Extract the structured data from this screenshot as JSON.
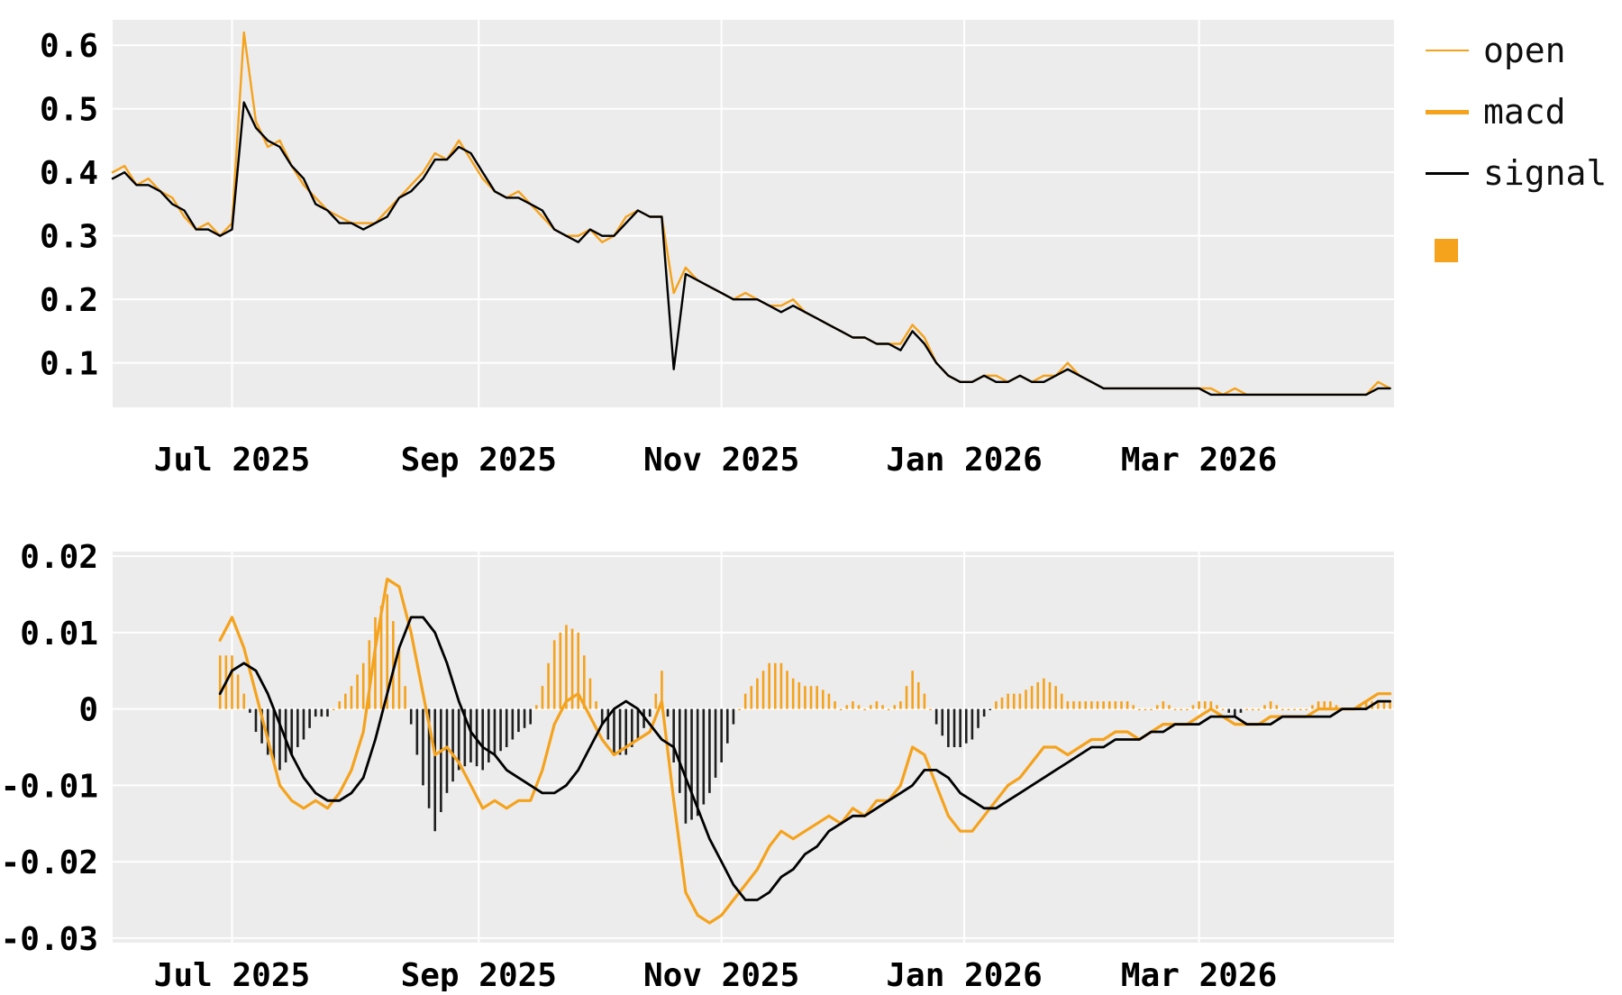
{
  "colors": {
    "orange": "#f5a21c",
    "black": "#000000",
    "plot_bg": "#ececec",
    "grid": "#ffffff",
    "hist_negative": "#1f1f1f"
  },
  "legend": {
    "items": [
      {
        "label": "open",
        "swatch": "thin-orange-line"
      },
      {
        "label": "macd",
        "swatch": "thick-orange-line"
      },
      {
        "label": "signal",
        "swatch": "black-line"
      },
      {
        "label": "",
        "swatch": "orange-square"
      }
    ]
  },
  "chart_data": [
    {
      "type": "line",
      "title": "",
      "panel": "price",
      "x_unit": "days since 2025-06-01",
      "x": {
        "start": 0,
        "step": 3
      },
      "xlim": [
        0,
        322
      ],
      "ylim": [
        0.03,
        0.64
      ],
      "grid": true,
      "yticks": [
        {
          "v": 0.1,
          "label": "0.1"
        },
        {
          "v": 0.2,
          "label": "0.2"
        },
        {
          "v": 0.3,
          "label": "0.3"
        },
        {
          "v": 0.4,
          "label": "0.4"
        },
        {
          "v": 0.5,
          "label": "0.5"
        },
        {
          "v": 0.6,
          "label": "0.6"
        }
      ],
      "xticks": [
        {
          "pos": 30,
          "label": "Jul 2025"
        },
        {
          "pos": 92,
          "label": "Sep 2025"
        },
        {
          "pos": 153,
          "label": "Nov 2025"
        },
        {
          "pos": 214,
          "label": "Jan 2026"
        },
        {
          "pos": 273,
          "label": "Mar 2026"
        }
      ],
      "series": [
        {
          "name": "open",
          "color": "#f5a21c",
          "width": 2.4,
          "values": [
            0.4,
            0.41,
            0.38,
            0.39,
            0.37,
            0.36,
            0.33,
            0.31,
            0.32,
            0.3,
            0.32,
            0.62,
            0.48,
            0.44,
            0.45,
            0.41,
            0.38,
            0.36,
            0.34,
            0.33,
            0.32,
            0.32,
            0.32,
            0.34,
            0.36,
            0.38,
            0.4,
            0.43,
            0.42,
            0.45,
            0.42,
            0.39,
            0.37,
            0.36,
            0.37,
            0.35,
            0.33,
            0.31,
            0.3,
            0.3,
            0.31,
            0.29,
            0.3,
            0.33,
            0.34,
            0.33,
            0.33,
            0.21,
            0.25,
            0.23,
            0.22,
            0.21,
            0.2,
            0.21,
            0.2,
            0.19,
            0.19,
            0.2,
            0.18,
            0.17,
            0.16,
            0.15,
            0.14,
            0.14,
            0.13,
            0.13,
            0.13,
            0.16,
            0.14,
            0.1,
            0.08,
            0.07,
            0.07,
            0.08,
            0.08,
            0.07,
            0.08,
            0.07,
            0.08,
            0.08,
            0.1,
            0.08,
            0.07,
            0.06,
            0.06,
            0.06,
            0.06,
            0.06,
            0.06,
            0.06,
            0.06,
            0.06,
            0.06,
            0.05,
            0.06,
            0.05,
            0.05,
            0.05,
            0.05,
            0.05,
            0.05,
            0.05,
            0.05,
            0.05,
            0.05,
            0.05,
            0.07,
            0.06
          ]
        },
        {
          "name": "signal",
          "color": "#000000",
          "width": 2.4,
          "values": [
            0.39,
            0.4,
            0.38,
            0.38,
            0.37,
            0.35,
            0.34,
            0.31,
            0.31,
            0.3,
            0.31,
            0.51,
            0.47,
            0.45,
            0.44,
            0.41,
            0.39,
            0.35,
            0.34,
            0.32,
            0.32,
            0.31,
            0.32,
            0.33,
            0.36,
            0.37,
            0.39,
            0.42,
            0.42,
            0.44,
            0.43,
            0.4,
            0.37,
            0.36,
            0.36,
            0.35,
            0.34,
            0.31,
            0.3,
            0.29,
            0.31,
            0.3,
            0.3,
            0.32,
            0.34,
            0.33,
            0.33,
            0.09,
            0.24,
            0.23,
            0.22,
            0.21,
            0.2,
            0.2,
            0.2,
            0.19,
            0.18,
            0.19,
            0.18,
            0.17,
            0.16,
            0.15,
            0.14,
            0.14,
            0.13,
            0.13,
            0.12,
            0.15,
            0.13,
            0.1,
            0.08,
            0.07,
            0.07,
            0.08,
            0.07,
            0.07,
            0.08,
            0.07,
            0.07,
            0.08,
            0.09,
            0.08,
            0.07,
            0.06,
            0.06,
            0.06,
            0.06,
            0.06,
            0.06,
            0.06,
            0.06,
            0.06,
            0.05,
            0.05,
            0.05,
            0.05,
            0.05,
            0.05,
            0.05,
            0.05,
            0.05,
            0.05,
            0.05,
            0.05,
            0.05,
            0.05,
            0.06,
            0.06
          ]
        }
      ]
    },
    {
      "type": "line+bar",
      "title": "",
      "panel": "macd",
      "x_unit": "days since 2025-06-01",
      "x": {
        "start": 27,
        "step": 3
      },
      "xlim": [
        0,
        322
      ],
      "ylim": [
        -0.0306,
        0.0206
      ],
      "grid": true,
      "histogram": {
        "formula": "macd-signal",
        "positive_color": "#f5a21c",
        "negative_color": "#1f1f1f"
      },
      "yticks": [
        {
          "v": -0.03,
          "label": "-0.03"
        },
        {
          "v": -0.02,
          "label": "-0.02"
        },
        {
          "v": -0.01,
          "label": "-0.01"
        },
        {
          "v": 0,
          "label": "0"
        },
        {
          "v": 0.01,
          "label": "0.01"
        },
        {
          "v": 0.02,
          "label": "0.02"
        }
      ],
      "xticks": [
        {
          "pos": 30,
          "label": "Jul 2025"
        },
        {
          "pos": 92,
          "label": "Sep 2025"
        },
        {
          "pos": 153,
          "label": "Nov 2025"
        },
        {
          "pos": 214,
          "label": "Jan 2026"
        },
        {
          "pos": 273,
          "label": "Mar 2026"
        }
      ],
      "series": [
        {
          "name": "macd",
          "color": "#f5a21c",
          "width": 3.2,
          "values": [
            0.009,
            0.012,
            0.008,
            0.002,
            -0.004,
            -0.01,
            -0.012,
            -0.013,
            -0.012,
            -0.013,
            -0.011,
            -0.008,
            -0.003,
            0.008,
            0.017,
            0.016,
            0.01,
            0.002,
            -0.006,
            -0.005,
            -0.007,
            -0.01,
            -0.013,
            -0.012,
            -0.013,
            -0.012,
            -0.012,
            -0.008,
            -0.002,
            0.001,
            0.002,
            -0.001,
            -0.004,
            -0.006,
            -0.005,
            -0.004,
            -0.003,
            0.001,
            -0.012,
            -0.024,
            -0.027,
            -0.028,
            -0.027,
            -0.025,
            -0.023,
            -0.021,
            -0.018,
            -0.016,
            -0.017,
            -0.016,
            -0.015,
            -0.014,
            -0.015,
            -0.013,
            -0.014,
            -0.012,
            -0.012,
            -0.01,
            -0.005,
            -0.006,
            -0.01,
            -0.014,
            -0.016,
            -0.016,
            -0.014,
            -0.012,
            -0.01,
            -0.009,
            -0.007,
            -0.005,
            -0.005,
            -0.006,
            -0.005,
            -0.004,
            -0.004,
            -0.003,
            -0.003,
            -0.004,
            -0.003,
            -0.002,
            -0.002,
            -0.002,
            -0.001,
            0.0,
            -0.001,
            -0.002,
            -0.002,
            -0.002,
            -0.001,
            -0.001,
            -0.001,
            -0.001,
            0.0,
            0.0,
            0.0,
            0.0,
            0.001,
            0.002,
            0.002
          ]
        },
        {
          "name": "signal",
          "color": "#000000",
          "width": 2.8,
          "values": [
            0.002,
            0.005,
            0.006,
            0.005,
            0.002,
            -0.002,
            -0.006,
            -0.009,
            -0.011,
            -0.012,
            -0.012,
            -0.011,
            -0.009,
            -0.004,
            0.002,
            0.008,
            0.012,
            0.012,
            0.01,
            0.006,
            0.001,
            -0.003,
            -0.005,
            -0.006,
            -0.008,
            -0.009,
            -0.01,
            -0.011,
            -0.011,
            -0.01,
            -0.008,
            -0.005,
            -0.002,
            0.0,
            0.001,
            0.0,
            -0.002,
            -0.004,
            -0.005,
            -0.009,
            -0.013,
            -0.017,
            -0.02,
            -0.023,
            -0.025,
            -0.025,
            -0.024,
            -0.022,
            -0.021,
            -0.019,
            -0.018,
            -0.016,
            -0.015,
            -0.014,
            -0.014,
            -0.013,
            -0.012,
            -0.011,
            -0.01,
            -0.008,
            -0.008,
            -0.009,
            -0.011,
            -0.012,
            -0.013,
            -0.013,
            -0.012,
            -0.011,
            -0.01,
            -0.009,
            -0.008,
            -0.007,
            -0.006,
            -0.005,
            -0.005,
            -0.004,
            -0.004,
            -0.004,
            -0.003,
            -0.003,
            -0.002,
            -0.002,
            -0.002,
            -0.001,
            -0.001,
            -0.001,
            -0.002,
            -0.002,
            -0.002,
            -0.001,
            -0.001,
            -0.001,
            -0.001,
            -0.001,
            0.0,
            0.0,
            0.0,
            0.001,
            0.001
          ]
        }
      ]
    }
  ]
}
